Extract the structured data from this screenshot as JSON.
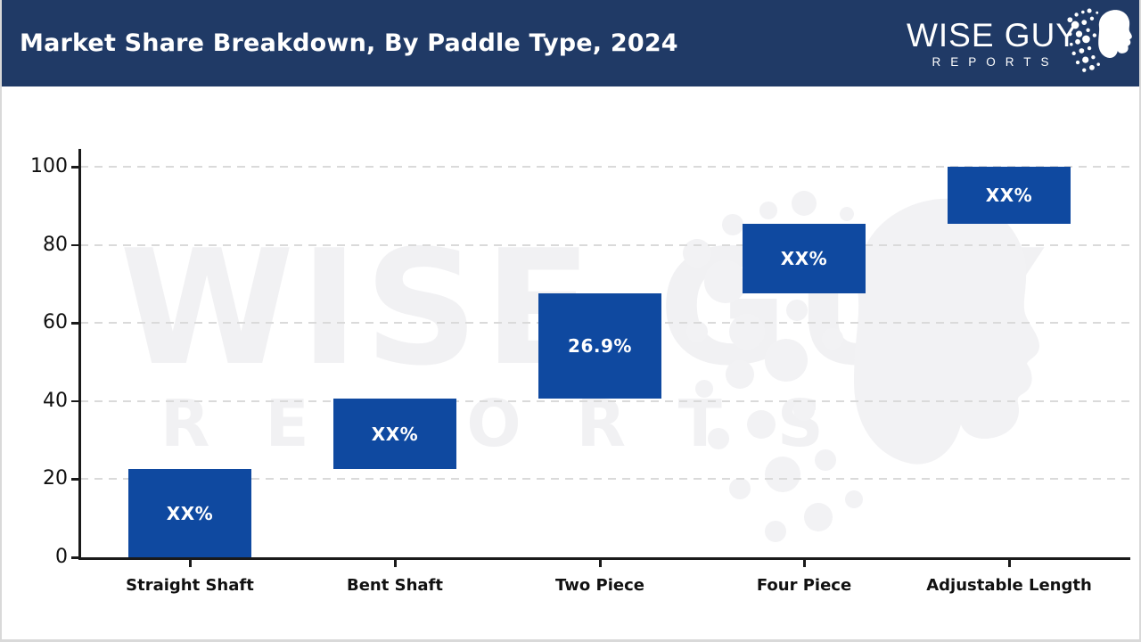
{
  "header": {
    "title": "Market Share Breakdown, By Paddle Type, 2024",
    "logo": {
      "name_top": "WISE GUY",
      "name_bottom": "REPORTS",
      "face_icon": "dotted-head-profile"
    }
  },
  "watermark": {
    "line1": "WISE GUY",
    "line2": "REPORTS",
    "face_icon": "dotted-head-profile"
  },
  "chart_data": {
    "type": "bar",
    "subtype": "waterfall-floating-bars",
    "title": "Market Share Breakdown, By Paddle Type, 2024",
    "categories": [
      "Straight Shaft",
      "Bent Shaft",
      "Two Piece",
      "Four Piece",
      "Adjustable Length"
    ],
    "bars": [
      {
        "category": "Straight Shaft",
        "start": 0,
        "end": 22.5,
        "label": "XX%"
      },
      {
        "category": "Bent Shaft",
        "start": 22.5,
        "end": 40.7,
        "label": "XX%"
      },
      {
        "category": "Two Piece",
        "start": 40.7,
        "end": 67.6,
        "label": "26.9%"
      },
      {
        "category": "Four Piece",
        "start": 67.6,
        "end": 85.4,
        "label": "XX%"
      },
      {
        "category": "Adjustable Length",
        "start": 85.4,
        "end": 100,
        "label": "XX%"
      }
    ],
    "xlabel": "",
    "ylabel": "",
    "ylim": [
      0,
      100
    ],
    "yticks": [
      0,
      20,
      40,
      60,
      80,
      100
    ],
    "grid": "horizontal-dashed",
    "legend": null,
    "bar_color": "#0f49a0",
    "value_label_color": "#ffffff",
    "axis_color": "#1a1a1a",
    "grid_color": "#dadada"
  },
  "colors": {
    "header_bg": "#203a66",
    "watermark": "#f1f1f3",
    "page_border": "#d9d9d9"
  }
}
